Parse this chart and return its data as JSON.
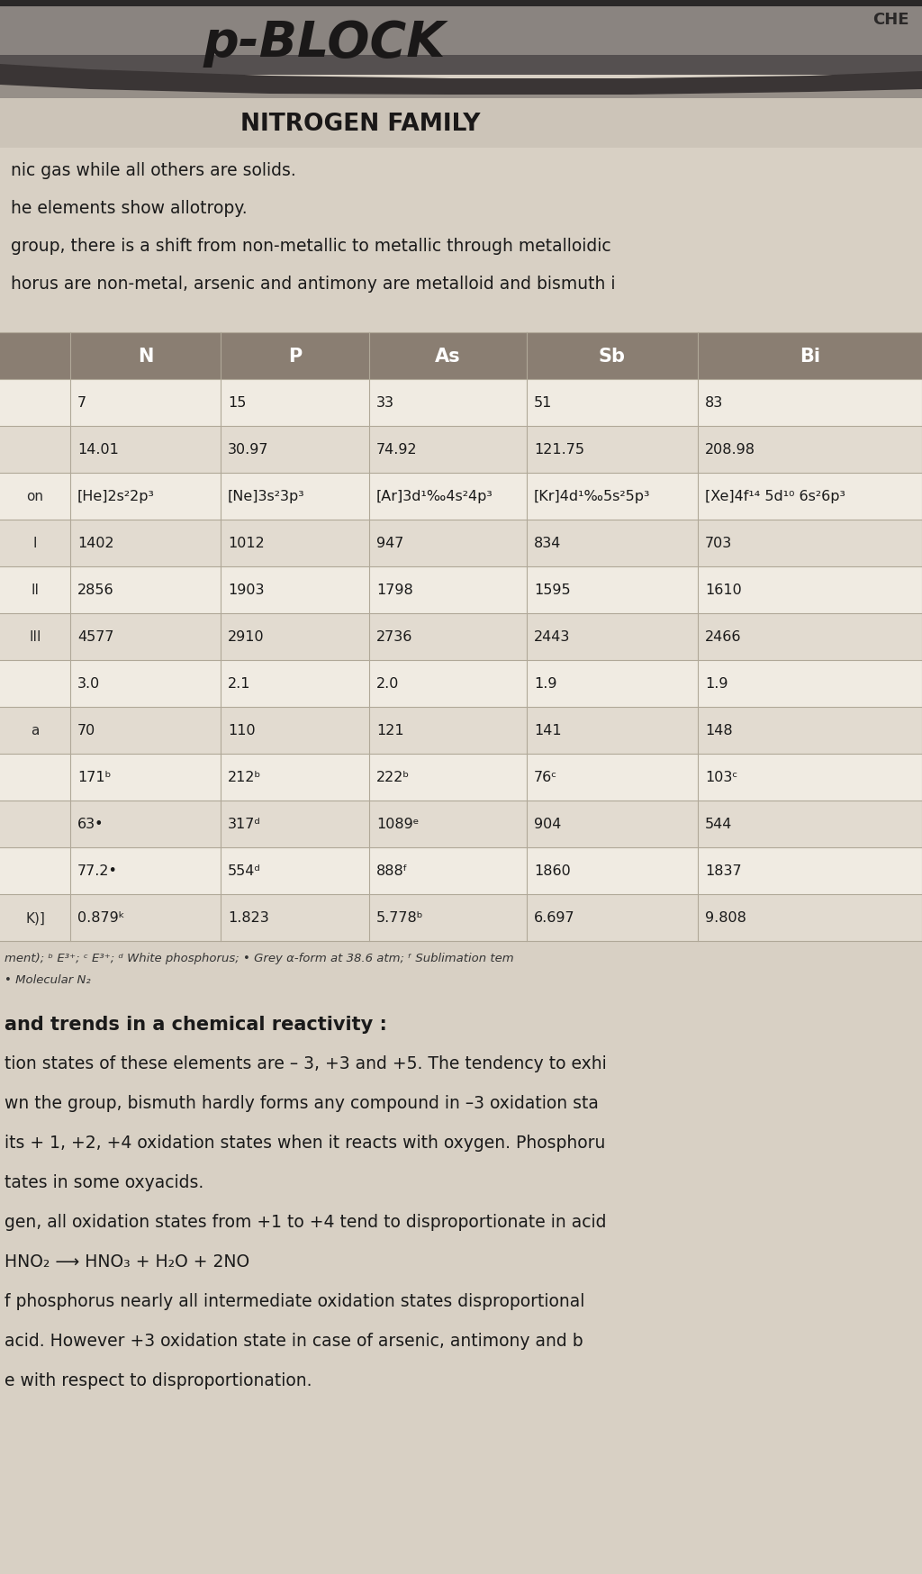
{
  "title_pblock": "p-BLOCK",
  "title_family": "NITROGEN FAMILY",
  "corner_text": "CHE",
  "page_bg": "#d8d0c4",
  "header_bg_top": "#888080",
  "header_bg_mid": "#706860",
  "shadow_color": "#4a4040",
  "subtitle_band_color": "#c8c0b4",
  "table_header_bg": "#8a7e72",
  "table_row_odd": "#f0ebe2",
  "table_row_even": "#e2dbd0",
  "body_text_color": "#1a1a1a",
  "intro_lines": [
    "nic gas while all others are solids.",
    "he elements show allotropy.",
    "group, there is a shift from non-metallic to metallic through metalloidic",
    "horus are non-metal, arsenic and antimony are metalloid and bismuth i"
  ],
  "col_headers": [
    "N",
    "P",
    "As",
    "Sb",
    "Bi"
  ],
  "row_labels": [
    "",
    "",
    "on",
    "I",
    "II",
    "III",
    "",
    "a",
    "",
    "",
    "",
    "K)]"
  ],
  "table_data": [
    [
      "7",
      "15",
      "33",
      "51",
      "83"
    ],
    [
      "14.01",
      "30.97",
      "74.92",
      "121.75",
      "208.98"
    ],
    [
      "[He]2s²2p³",
      "[Ne]3s²3p³",
      "[Ar]3d¹‰4s²4p³",
      "[Kr]4d¹‰5s²5p³",
      "[Xe]4f¹⁴ 5d¹⁰ 6s²6p³"
    ],
    [
      "1402",
      "1012",
      "947",
      "834",
      "703"
    ],
    [
      "2856",
      "1903",
      "1798",
      "1595",
      "1610"
    ],
    [
      "4577",
      "2910",
      "2736",
      "2443",
      "2466"
    ],
    [
      "3.0",
      "2.1",
      "2.0",
      "1.9",
      "1.9"
    ],
    [
      "70",
      "110",
      "121",
      "141",
      "148"
    ],
    [
      "171ᵇ",
      "212ᵇ",
      "222ᵇ",
      "76ᶜ",
      "103ᶜ"
    ],
    [
      "63•",
      "317ᵈ",
      "1089ᵉ",
      "904",
      "544"
    ],
    [
      "77.2•",
      "554ᵈ",
      "888ᶠ",
      "1860",
      "1837"
    ],
    [
      "0.879ᵏ",
      "1.823",
      "5.778ᵇ",
      "6.697",
      "9.808"
    ]
  ],
  "footnote1": "ment); ᵇ E³⁺; ᶜ E³⁺; ᵈ White phosphorus; • Grey α-form at 38.6 atm; ᶠ Sublimation tem",
  "footnote2": "• Molecular N₂",
  "body_lines": [
    [
      "and trends in a chemical reactivity :",
      true
    ],
    [
      "tion states of these elements are – 3, +3 and +5. The tendency to exhi",
      false
    ],
    [
      "wn the group, bismuth hardly forms any compound in –3 oxidation sta",
      false
    ],
    [
      "its + 1, +2, +4 oxidation states when it reacts with oxygen. Phosphoru",
      false
    ],
    [
      "tates in some oxyacids.",
      false
    ],
    [
      "gen, all oxidation states from +1 to +4 tend to disproportionate in acid",
      false
    ],
    [
      "HNO₂ ⟶ HNO₃ + H₂O + 2NO",
      false
    ],
    [
      "f phosphorus nearly all intermediate oxidation states disproportional",
      false
    ],
    [
      "acid. However +3 oxidation state in case of arsenic, antimony and b",
      false
    ],
    [
      "e with respect to disproportionation.",
      false
    ]
  ]
}
